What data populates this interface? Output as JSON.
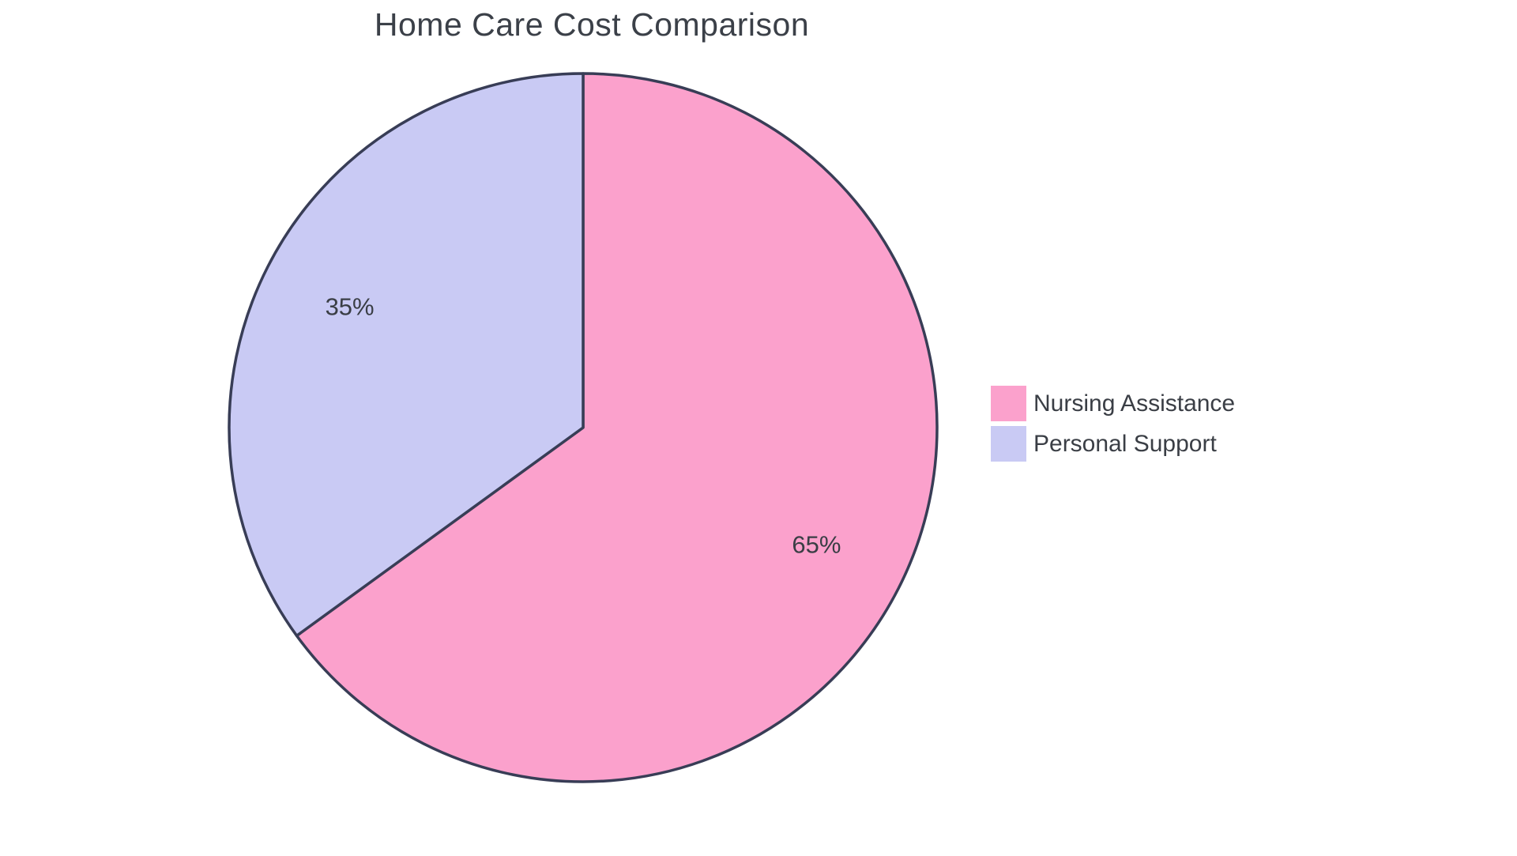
{
  "chart_data": {
    "type": "pie",
    "title": "Home Care Cost Comparison",
    "direction": "clockwise",
    "start_angle_deg": 0,
    "legend_position": "right",
    "background_color": "#FFFFFF",
    "stroke_color": "#383D56",
    "text_color": "#3A3E45",
    "slices": [
      {
        "label": "Nursing Assistance",
        "value": 65,
        "percent_label": "65%",
        "color": "#FBA1CC"
      },
      {
        "label": "Personal Support",
        "value": 35,
        "percent_label": "35%",
        "color": "#C9CAF4"
      }
    ]
  }
}
